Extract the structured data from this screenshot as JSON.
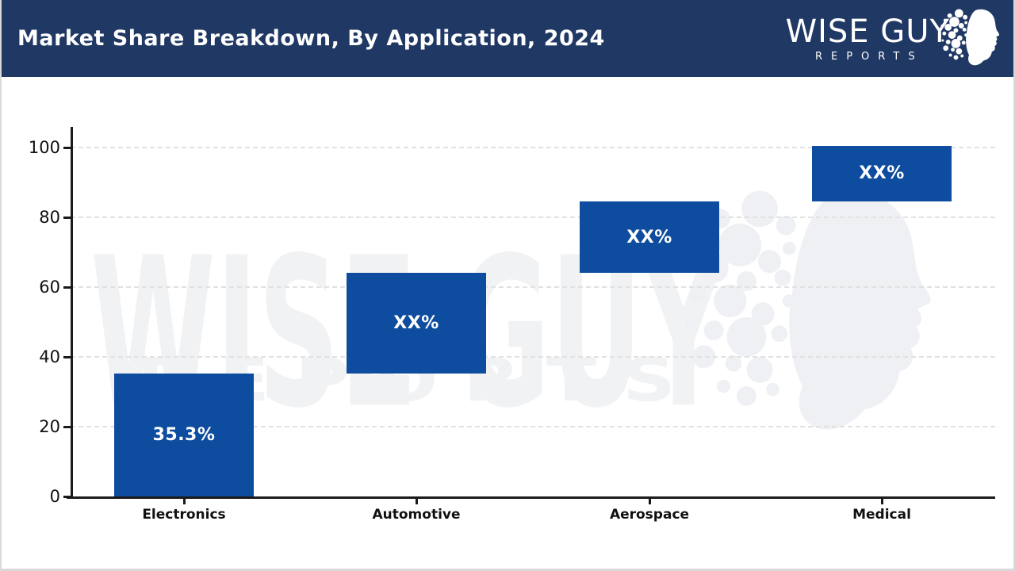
{
  "header": {
    "title": "Market Share Breakdown, By Application, 2024",
    "logo": {
      "line1": "WISE GUY",
      "line2": "REPORTS"
    }
  },
  "watermark": {
    "line1": "WISE GUY",
    "line2": "R E P O R T S"
  },
  "colors": {
    "header_bg": "#203864",
    "bar_blue": "#0d4c9e",
    "grid": "#e1e1e1",
    "axis": "#1a1a1a",
    "watermark_gray": "#f0f1f3",
    "border_gray": "#d9d9d9",
    "bar_label_text": "#ffffff"
  },
  "chart_data": {
    "type": "bar",
    "subtype": "waterfall",
    "title": "Market Share Breakdown, By Application, 2024",
    "categories": [
      "Electronics",
      "Automotive",
      "Aerospace",
      "Medical"
    ],
    "segments": [
      {
        "category": "Electronics",
        "start": 0,
        "end": 35.3,
        "label": "35.3%"
      },
      {
        "category": "Automotive",
        "start": 35.3,
        "end": 64,
        "label": "XX%"
      },
      {
        "category": "Aerospace",
        "start": 64,
        "end": 84.5,
        "label": "XX%"
      },
      {
        "category": "Medical",
        "start": 84.5,
        "end": 100.5,
        "label": "XX%"
      }
    ],
    "y_ticks": [
      0,
      20,
      40,
      60,
      80,
      100
    ],
    "ylim": [
      0,
      105
    ],
    "xlabel": "",
    "ylabel": "",
    "grid": "horizontal-dashed",
    "legend": "none"
  }
}
